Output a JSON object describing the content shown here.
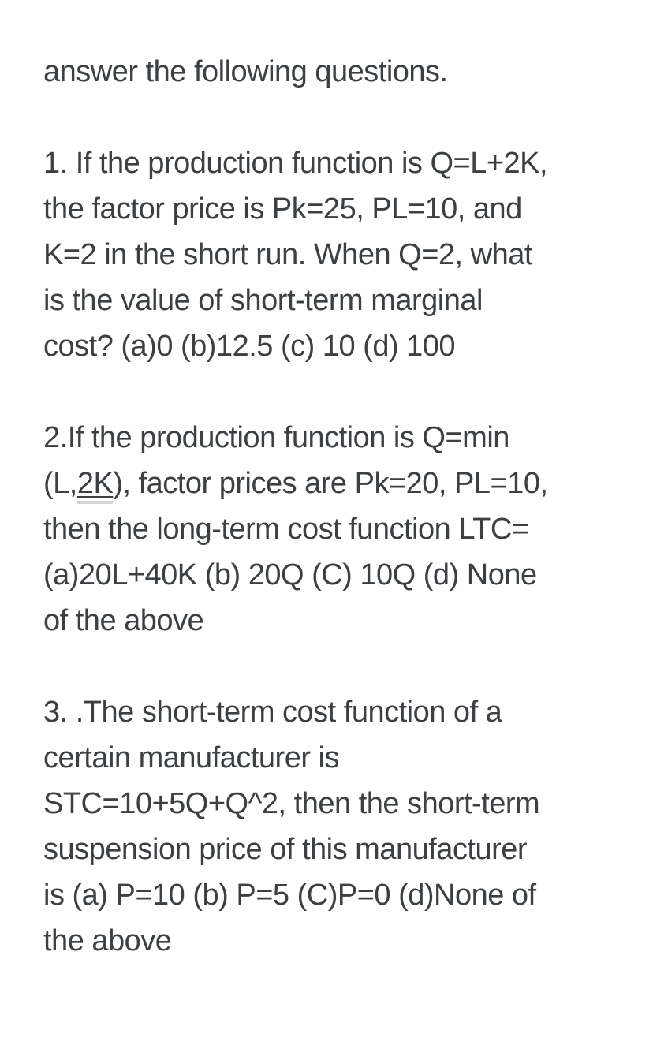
{
  "page": {
    "background": "#ffffff",
    "text_color": "#3c4043",
    "grammar_underline_color": "#d4d4d4"
  },
  "document": {
    "paragraphs": [
      {
        "name": "intro-paragraph",
        "lines": [
          [
            {
              "t": "answer the following questions."
            }
          ]
        ]
      },
      {
        "name": "question-1",
        "lines": [
          [
            {
              "t": "1. If the production function is Q=L+2K,"
            }
          ],
          [
            {
              "t": "the factor price is Pk=25, PL=10, and"
            }
          ],
          [
            {
              "t": "K=2 in the short run. When Q=2, what"
            }
          ],
          [
            {
              "t": "is the value of short-term marginal"
            }
          ],
          [
            {
              "t": "cost? (a)0 (b)12.5 (c) 10 (d) 100"
            }
          ]
        ]
      },
      {
        "name": "question-2",
        "lines": [
          [
            {
              "t": "2.If the production function is Q=min"
            }
          ],
          [
            {
              "t": "(L,"
            },
            {
              "t": "2K",
              "u": true
            },
            {
              "t": "), factor prices are Pk=20, PL=10,"
            }
          ],
          [
            {
              "t": "then the long-term cost function LTC="
            }
          ],
          [
            {
              "t": "(a)20L+40K (b) 20Q (C) 10Q (d) None"
            }
          ],
          [
            {
              "t": "of the above"
            }
          ]
        ]
      },
      {
        "name": "question-3",
        "lines": [
          [
            {
              "t": "3. .The short-term cost function of a"
            }
          ],
          [
            {
              "t": "certain manufacturer is"
            }
          ],
          [
            {
              "t": "STC=10+5Q+Q^2, then the short-term"
            }
          ],
          [
            {
              "t": "suspension price of this manufacturer"
            }
          ],
          [
            {
              "t": "is (a) P=10 (b) P=5 (C)P=0 (d)None of"
            }
          ],
          [
            {
              "t": "the above"
            }
          ]
        ]
      }
    ]
  }
}
